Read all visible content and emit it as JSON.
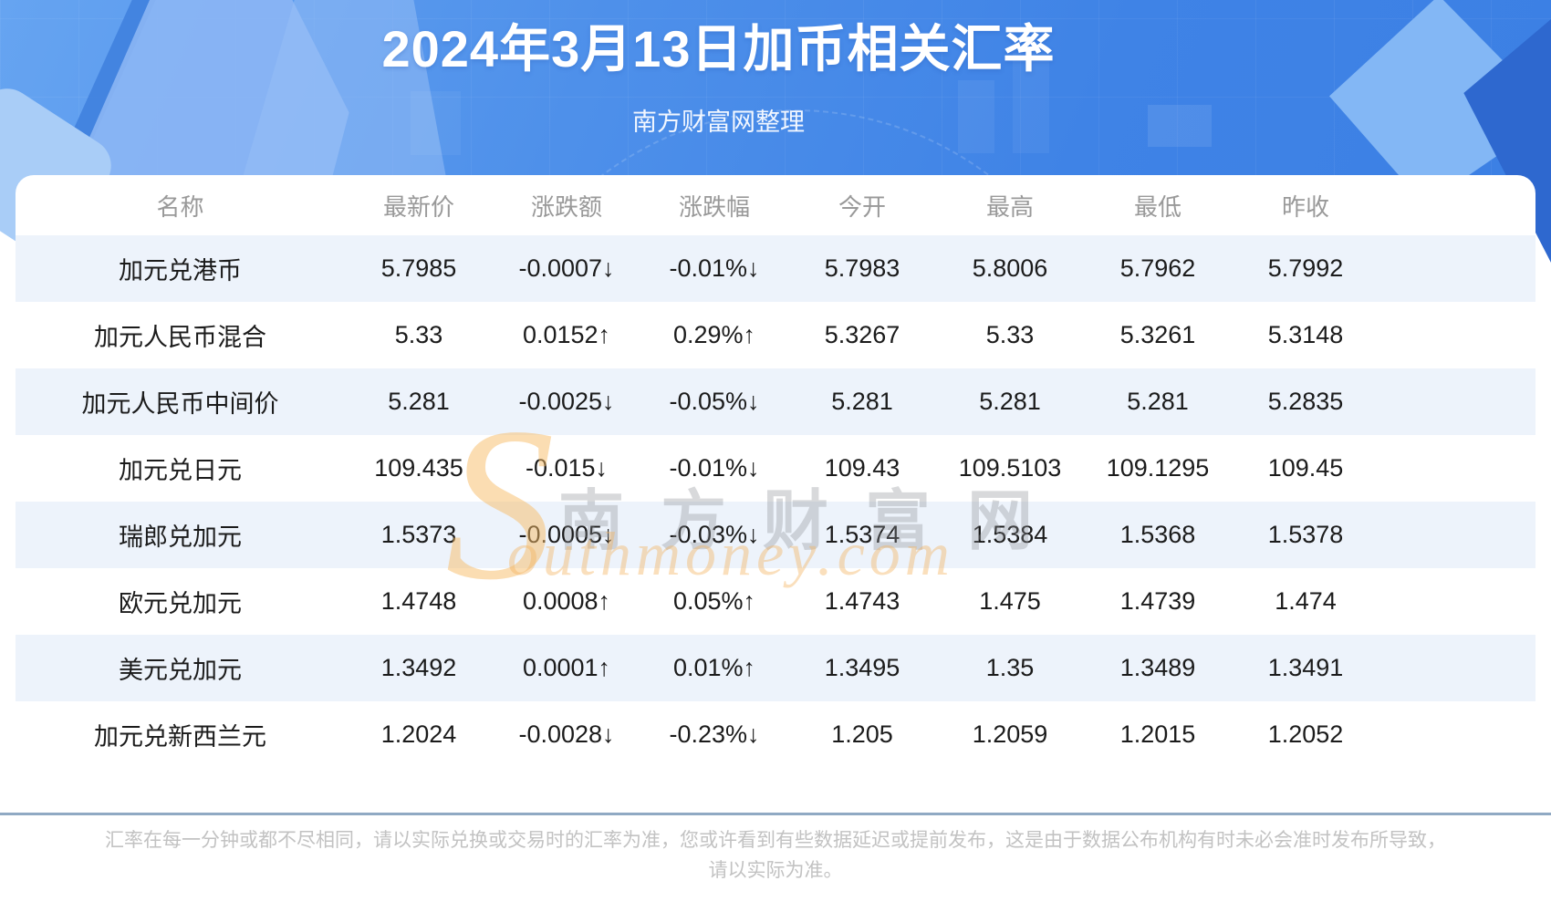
{
  "header": {
    "title": "2024年3月13日加币相关汇率",
    "subtitle": "南方财富网整理"
  },
  "watermark": {
    "initial": "S",
    "cn": "南方财富网",
    "en": "outhmoney.com"
  },
  "table": {
    "columns": [
      "名称",
      "最新价",
      "涨跌额",
      "涨跌幅",
      "今开",
      "最高",
      "最低",
      "昨收"
    ],
    "rows": [
      {
        "name": "加元兑港币",
        "last": "5.7985",
        "change": "-0.0007↓",
        "pct": "-0.01%↓",
        "open": "5.7983",
        "high": "5.8006",
        "low": "5.7962",
        "prev": "5.7992",
        "dir": "down"
      },
      {
        "name": "加元人民币混合",
        "last": "5.33",
        "change": "0.0152↑",
        "pct": "0.29%↑",
        "open": "5.3267",
        "high": "5.33",
        "low": "5.3261",
        "prev": "5.3148",
        "dir": "up"
      },
      {
        "name": "加元人民币中间价",
        "last": "5.281",
        "change": "-0.0025↓",
        "pct": "-0.05%↓",
        "open": "5.281",
        "high": "5.281",
        "low": "5.281",
        "prev": "5.2835",
        "dir": "down"
      },
      {
        "name": "加元兑日元",
        "last": "109.435",
        "change": "-0.015↓",
        "pct": "-0.01%↓",
        "open": "109.43",
        "high": "109.5103",
        "low": "109.1295",
        "prev": "109.45",
        "dir": "down"
      },
      {
        "name": "瑞郎兑加元",
        "last": "1.5373",
        "change": "-0.0005↓",
        "pct": "-0.03%↓",
        "open": "1.5374",
        "high": "1.5384",
        "low": "1.5368",
        "prev": "1.5378",
        "dir": "down"
      },
      {
        "name": "欧元兑加元",
        "last": "1.4748",
        "change": "0.0008↑",
        "pct": "0.05%↑",
        "open": "1.4743",
        "high": "1.475",
        "low": "1.4739",
        "prev": "1.474",
        "dir": "up"
      },
      {
        "name": "美元兑加元",
        "last": "1.3492",
        "change": "0.0001↑",
        "pct": "0.01%↑",
        "open": "1.3495",
        "high": "1.35",
        "low": "1.3489",
        "prev": "1.3491",
        "dir": "up"
      },
      {
        "name": "加元兑新西兰元",
        "last": "1.2024",
        "change": "-0.0028↓",
        "pct": "-0.23%↓",
        "open": "1.205",
        "high": "1.2059",
        "low": "1.2015",
        "prev": "1.2052",
        "dir": "down"
      }
    ]
  },
  "footer": {
    "line1": "汇率在每一分钟或都不尽相同，请以实际兑换或交易时的汇率为准，您或许看到有些数据延迟或提前发布，这是由于数据公布机构有时未必会准时发布所导致，",
    "line2": "请以实际为准。"
  },
  "colors": {
    "up": "#ee1414",
    "down": "#0d8f0d",
    "banner_blue": "#4288e8",
    "stripe_blue": "#edf3fb",
    "divider_blue": "#90a9c3",
    "header_text_gray": "#999999",
    "footer_gray": "#c2c2c2"
  },
  "chart_data": {
    "type": "table",
    "title": "2024年3月13日加币相关汇率",
    "subtitle": "南方财富网整理",
    "columns": [
      "名称",
      "最新价",
      "涨跌额",
      "涨跌幅",
      "今开",
      "最高",
      "最低",
      "昨收"
    ],
    "rows": [
      [
        "加元兑港币",
        "5.7985",
        "-0.0007↓",
        "-0.01%↓",
        "5.7983",
        "5.8006",
        "5.7962",
        "5.7992"
      ],
      [
        "加元人民币混合",
        "5.33",
        "0.0152↑",
        "0.29%↑",
        "5.3267",
        "5.33",
        "5.3261",
        "5.3148"
      ],
      [
        "加元人民币中间价",
        "5.281",
        "-0.0025↓",
        "-0.05%↓",
        "5.281",
        "5.281",
        "5.281",
        "5.2835"
      ],
      [
        "加元兑日元",
        "109.435",
        "-0.015↓",
        "-0.01%↓",
        "109.43",
        "109.5103",
        "109.1295",
        "109.45"
      ],
      [
        "瑞郎兑加元",
        "1.5373",
        "-0.0005↓",
        "-0.03%↓",
        "1.5374",
        "1.5384",
        "1.5368",
        "1.5378"
      ],
      [
        "欧元兑加元",
        "1.4748",
        "0.0008↑",
        "0.05%↑",
        "1.4743",
        "1.475",
        "1.4739",
        "1.474"
      ],
      [
        "美元兑加元",
        "1.3492",
        "0.0001↑",
        "0.01%↑",
        "1.3495",
        "1.35",
        "1.3489",
        "1.3491"
      ],
      [
        "加元兑新西兰元",
        "1.2024",
        "-0.0028↓",
        "-0.23%↓",
        "1.205",
        "1.2059",
        "1.2015",
        "1.2052"
      ]
    ],
    "legend_position": "none",
    "grid": false
  }
}
